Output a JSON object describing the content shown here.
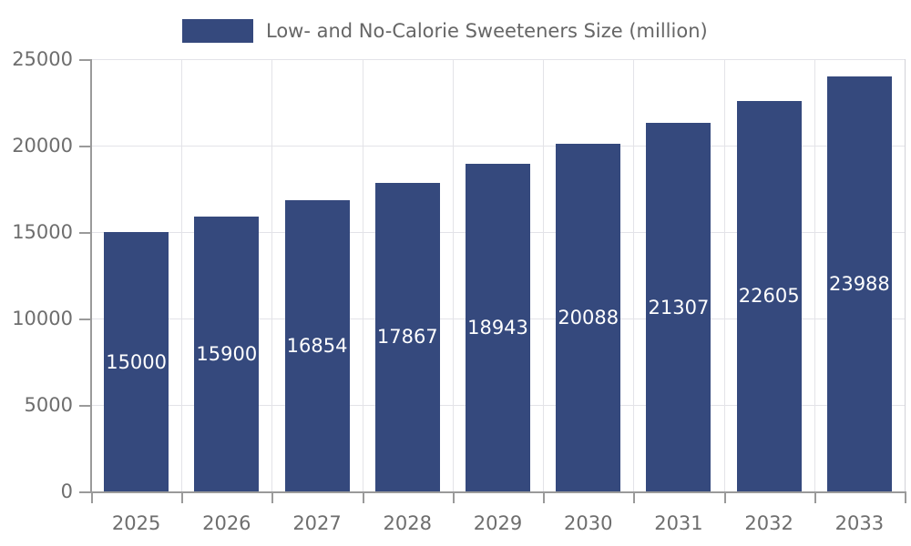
{
  "legend": {
    "label": "Low- and No-Calorie Sweeteners Size (million)"
  },
  "colors": {
    "bar": "#35497d",
    "axis": "#9a9a9a",
    "grid": "#e3e3e8",
    "right_spine": "#d2d2d8",
    "tick_label": "#6e6e6e",
    "legend_text": "#666666",
    "bar_label": "#ffffff",
    "background": "#ffffff"
  },
  "chart_data": {
    "type": "bar",
    "title": "Low- and No-Calorie Sweeteners Size (million)",
    "categories": [
      "2025",
      "2026",
      "2027",
      "2028",
      "2029",
      "2030",
      "2031",
      "2032",
      "2033"
    ],
    "values": [
      15000,
      15900,
      16854,
      17867,
      18943,
      20088,
      21307,
      22605,
      23988
    ],
    "xlabel": "",
    "ylabel": "",
    "ylim": [
      0,
      25000
    ],
    "yticks": [
      0,
      5000,
      10000,
      15000,
      20000,
      25000
    ],
    "grid": true,
    "legend_position": "top",
    "bar_value_labels": "inside-center"
  }
}
